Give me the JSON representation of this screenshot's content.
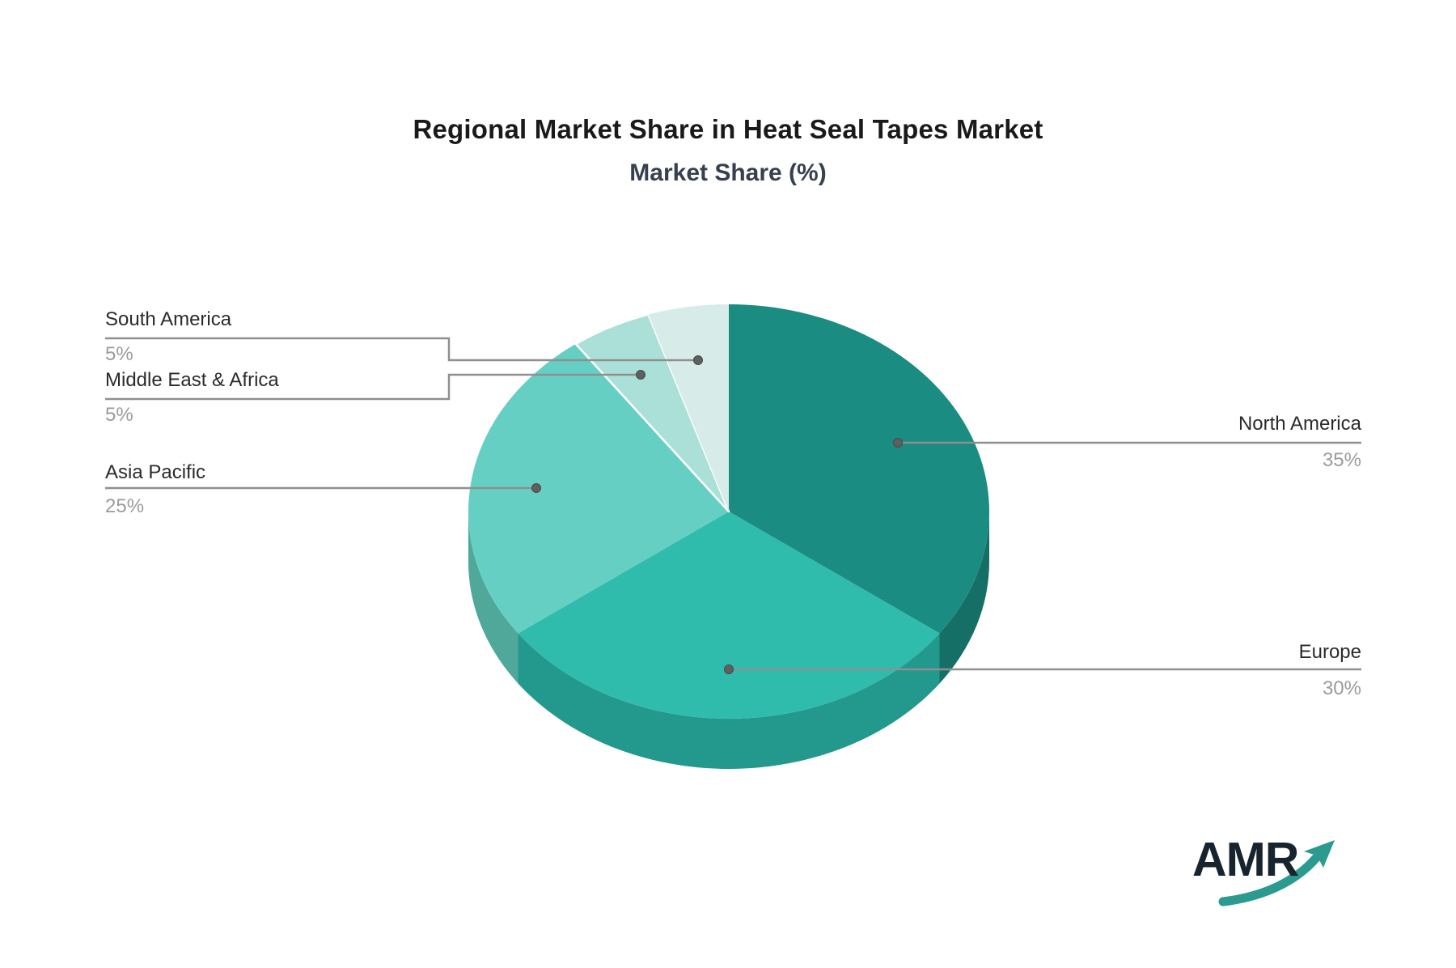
{
  "header": {
    "title": "Regional Market Share in Heat Seal Tapes Market",
    "subtitle": "Market Share (%)"
  },
  "chart_data": {
    "type": "pie",
    "style": "3d",
    "title": "Regional Market Share in Heat Seal Tapes Market",
    "subtitle": "Market Share (%)",
    "unit": "%",
    "total": 100,
    "order": "clockwise-from-top",
    "categories": [
      "North America",
      "Europe",
      "Asia Pacific",
      "Middle East & Africa",
      "South America"
    ],
    "values": [
      35,
      30,
      25,
      5,
      5
    ],
    "slices": [
      {
        "label": "North America",
        "value": 35,
        "pct_label": "35%",
        "color": "#1a8c81",
        "side_color": "#156f67",
        "callout_side": "right"
      },
      {
        "label": "Europe",
        "value": 30,
        "pct_label": "30%",
        "color": "#2fbcac",
        "side_color": "#23988c",
        "callout_side": "right"
      },
      {
        "label": "Asia Pacific",
        "value": 25,
        "pct_label": "25%",
        "color": "#66cfc3",
        "side_color": "#50a89a",
        "callout_side": "left"
      },
      {
        "label": "Middle East & Africa",
        "value": 5,
        "pct_label": "5%",
        "color": "#abe0d8",
        "side_color": "#8fcdc3",
        "callout_side": "left"
      },
      {
        "label": "South America",
        "value": 5,
        "pct_label": "5%",
        "color": "#d7ece8",
        "side_color": "#bbdcd6",
        "callout_side": "left"
      }
    ],
    "colors": {
      "label_text": "#2b2b2b",
      "pct_text": "#9b9b9b",
      "line": "#8f8f8f",
      "dot": "#5f5f5f",
      "slice_gap": "#ffffff"
    },
    "legend": "none",
    "grid": "off"
  },
  "logo": {
    "text": "AMR",
    "text_color": "#17242e",
    "arrow_color": "#2b9a8f"
  }
}
